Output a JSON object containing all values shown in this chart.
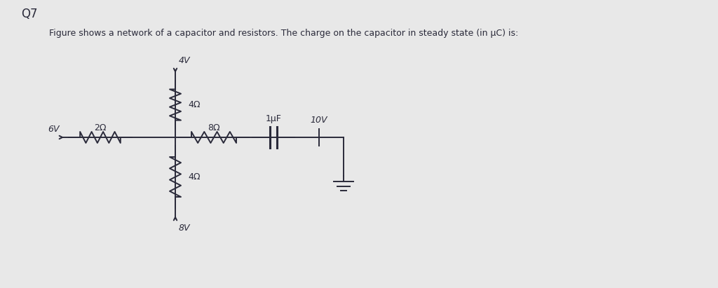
{
  "title": "Q7",
  "description": "Figure shows a network of a capacitor and resistors. The charge on the capacitor in steady state (in μC) is:",
  "bg_color": "#e8e8e8",
  "circuit": {
    "resistor_2ohm_label": "2Ω",
    "resistor_4ohm_top_label": "4Ω",
    "resistor_4ohm_bot_label": "4Ω",
    "resistor_8ohm_label": "8Ω",
    "capacitor_label": "1μF",
    "voltage_10v_label": "10V",
    "voltage_6v_label": "6V",
    "voltage_4v_label": "4V",
    "voltage_8v_label": "8V"
  },
  "line_color": "#2a2a3a",
  "label_color": "#2a2a3a",
  "figsize": [
    10.24,
    4.11
  ],
  "dpi": 100
}
